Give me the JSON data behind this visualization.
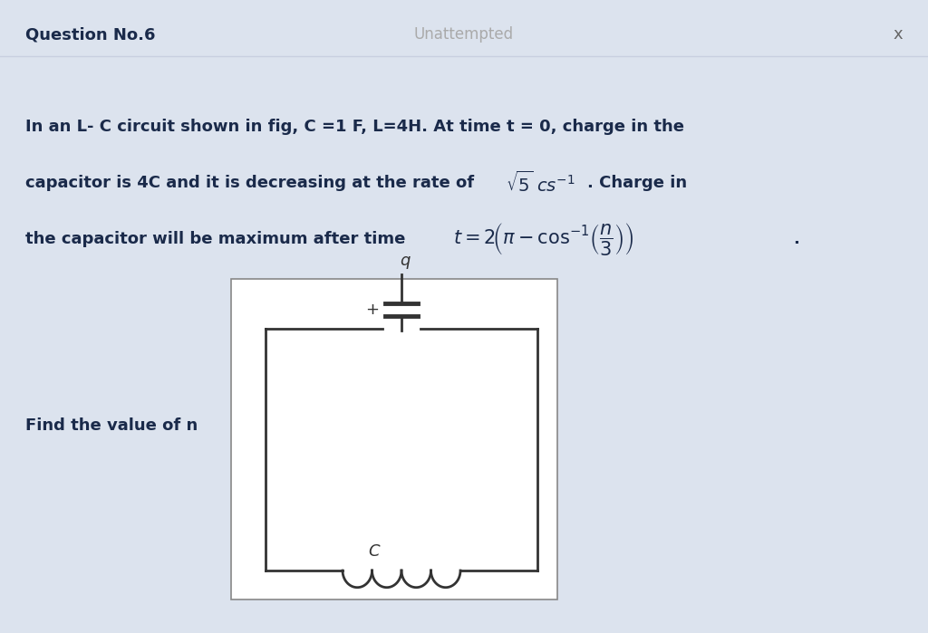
{
  "background_color": "#dce3ee",
  "title_text": "Question No.6",
  "status_text": "Unattempted",
  "close_text": "x",
  "title_fontsize": 13,
  "status_fontsize": 12,
  "body_fontsize": 13,
  "find_fontsize": 13,
  "line1": "In an L- C circuit shown in fig, C =1 F, L=4H. At time t = 0, charge in the",
  "line2_a": "capacitor is 4C and it is decreasing at the rate of",
  "line2_b": ". Charge in",
  "line3_a": "the capacitor will be maximum after time",
  "line3_end": ".",
  "find_text": "Find the value of n"
}
